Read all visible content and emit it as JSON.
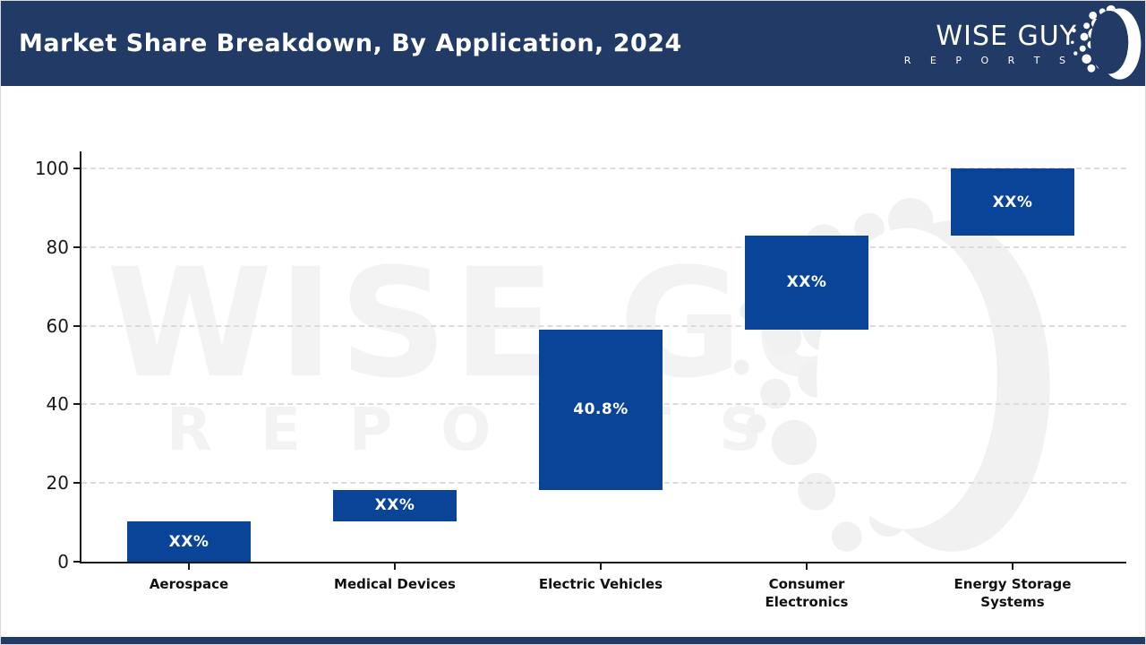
{
  "header": {
    "title": "Market Share Breakdown, By Application, 2024",
    "logo_line1": "WISE GUY",
    "logo_line2": "R E P O R T S"
  },
  "watermark": {
    "line1": "WISE GUY",
    "line2": "REPORTS"
  },
  "colors": {
    "header_bg": "#213a66",
    "footer_bg": "#213a66",
    "bar": "#0a4499",
    "grid": "#dcdcdc",
    "axis": "#1a1a1a",
    "bar_label": "#ffffff",
    "watermark": "#f3f3f3"
  },
  "chart_data": {
    "type": "bar",
    "subtype": "waterfall",
    "title": "Market Share Breakdown, By Application, 2024",
    "xlabel": "",
    "ylabel": "",
    "categories": [
      "Aerospace",
      "Medical Devices",
      "Electric Vehicles",
      "Consumer Electronics",
      "Energy Storage Systems"
    ],
    "values": [
      10.2,
      8.1,
      40.8,
      23.8,
      17.1
    ],
    "cumulative_start": [
      0,
      10.2,
      18.3,
      59.1,
      82.9
    ],
    "cumulative_end": [
      10.2,
      18.3,
      59.1,
      82.9,
      100
    ],
    "bar_labels": [
      "XX%",
      "XX%",
      "40.8%",
      "XX%",
      "XX%"
    ],
    "y_ticks": [
      0,
      20,
      40,
      60,
      80,
      100
    ],
    "ylim": [
      0,
      105
    ],
    "grid": "horizontal-dashed",
    "legend": "none"
  }
}
